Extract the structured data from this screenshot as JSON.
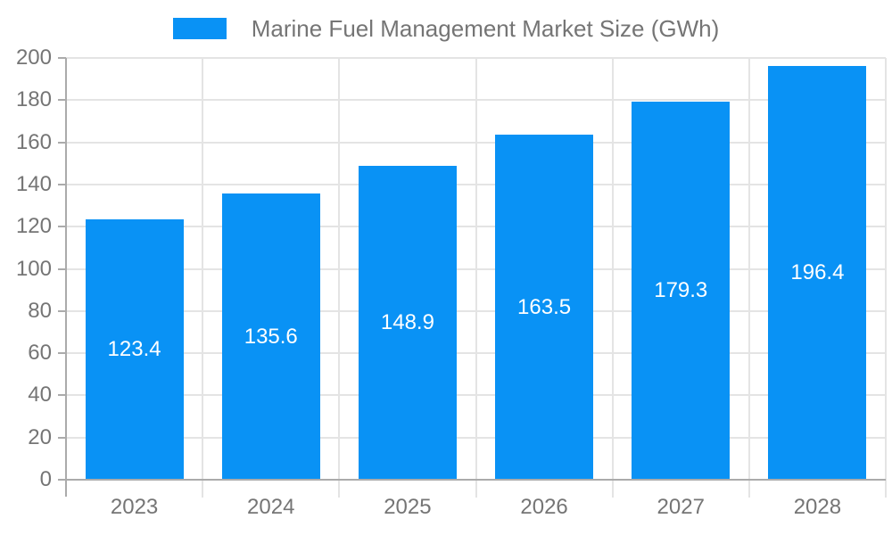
{
  "chart_data": {
    "type": "bar",
    "title": "Marine Fuel Management Market Size (GWh)",
    "legend": [
      "Marine Fuel Management Market Size (GWh)"
    ],
    "legend_position": "top-center",
    "categories": [
      "2023",
      "2024",
      "2025",
      "2026",
      "2027",
      "2028"
    ],
    "series": [
      {
        "name": "Marine Fuel Management Market Size (GWh)",
        "values": [
          123.4,
          135.6,
          148.9,
          163.5,
          179.3,
          196.4
        ]
      }
    ],
    "value_labels": [
      "123.4",
      "135.6",
      "148.9",
      "163.5",
      "179.3",
      "196.4"
    ],
    "xlabel": "",
    "ylabel": "",
    "ylim": [
      0,
      200
    ],
    "ytick_step": 20,
    "yticks": [
      0,
      20,
      40,
      60,
      80,
      100,
      120,
      140,
      160,
      180,
      200
    ],
    "grid": true,
    "colors": {
      "bar": "#0992f5",
      "bar_value_label": "#ffffff",
      "gridline": "#e4e4e4",
      "axis_line": "#ababab",
      "axis_text": "#757575",
      "background": "#ffffff"
    }
  }
}
